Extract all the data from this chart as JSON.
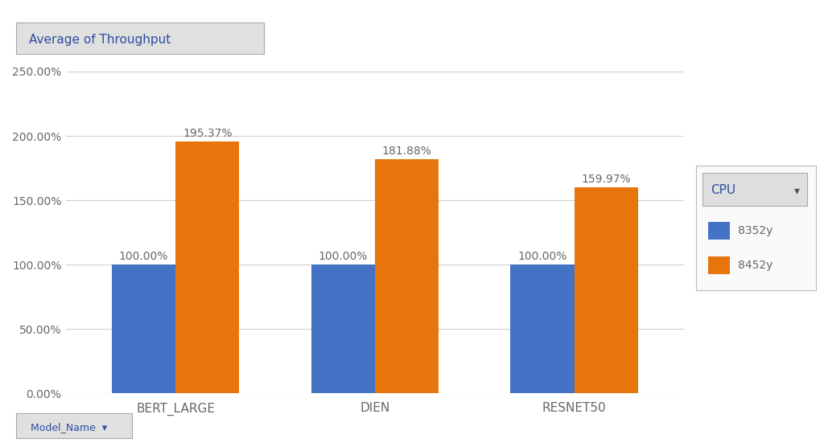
{
  "categories": [
    "BERT_LARGE",
    "DIEN",
    "RESNET50"
  ],
  "series": [
    {
      "name": "8352y",
      "values": [
        100.0,
        100.0,
        100.0
      ],
      "color": "#4472C4"
    },
    {
      "name": "8452y",
      "values": [
        195.37,
        181.88,
        159.97
      ],
      "color": "#E8740C"
    }
  ],
  "title": "Average of Throughput",
  "ylim": [
    0,
    250
  ],
  "yticks": [
    0,
    50,
    100,
    150,
    200,
    250
  ],
  "ytick_labels": [
    "0.00%",
    "50.00%",
    "100.00%",
    "150.00%",
    "200.00%",
    "250.00%"
  ],
  "bar_labels": [
    [
      "100.00%",
      "195.37%"
    ],
    [
      "100.00%",
      "181.88%"
    ],
    [
      "100.00%",
      "159.97%"
    ]
  ],
  "legend_title": "CPU",
  "background_color": "#FFFFFF",
  "plot_bg_color": "#FFFFFF",
  "grid_color": "#D0D0D0",
  "title_fontsize": 11,
  "tick_fontsize": 10,
  "label_fontsize": 10,
  "bar_width": 0.32,
  "title_color": "#2B4DA0",
  "axis_label_color": "#666666"
}
